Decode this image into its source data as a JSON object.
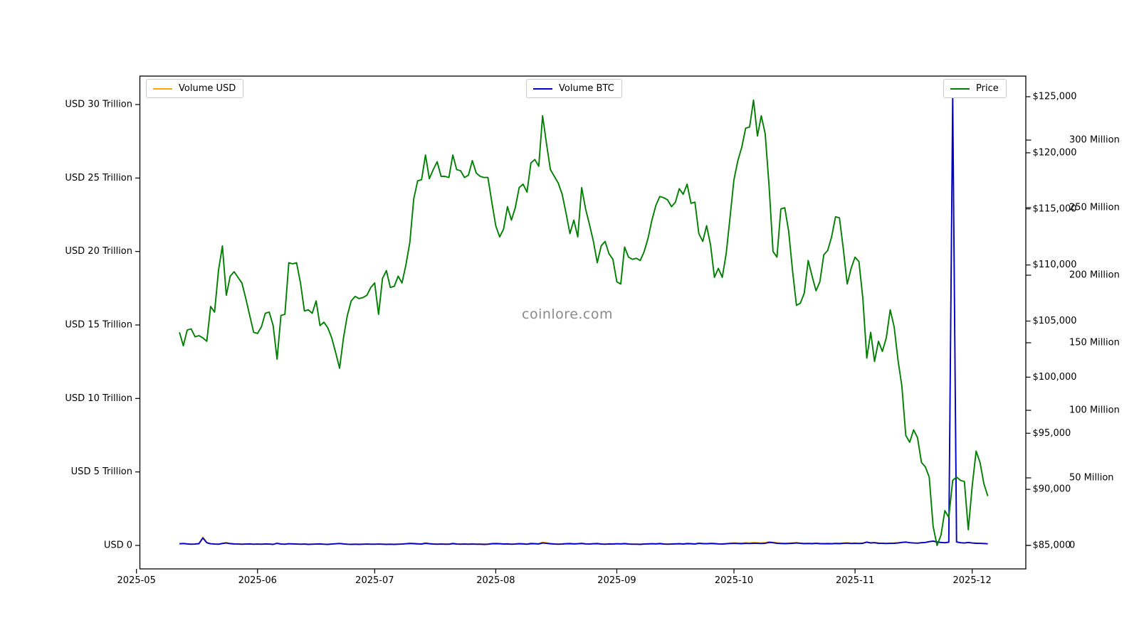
{
  "figure": {
    "watermark": "coinlore.com",
    "background": "#ffffff"
  },
  "legend": [
    {
      "label": "Volume USD",
      "color": "#FFA500"
    },
    {
      "label": "Volume BTC",
      "color": "#0000CD"
    },
    {
      "label": "Price",
      "color": "#008000"
    }
  ],
  "axes": {
    "x": {
      "labels": [
        "2025-05",
        "2025-06",
        "2025-07",
        "2025-08",
        "2025-09",
        "2025-10",
        "2025-11",
        "2025-12"
      ],
      "month_day_offsets": [
        0,
        31,
        61,
        92,
        123,
        153,
        184,
        214
      ]
    },
    "left_volume_usd": {
      "labels": [
        "USD 0",
        "USD 5 Trillion",
        "USD 10 Trillion",
        "USD 15 Trillion",
        "USD 20 Trillion",
        "USD 25 Trillion",
        "USD 30 Trillion"
      ],
      "values_trillions": [
        0,
        5,
        10,
        15,
        20,
        25,
        30
      ]
    },
    "right_price": {
      "labels": [
        "$85,000",
        "$90,000",
        "$95,000",
        "$100,000",
        "$105,000",
        "$110,000",
        "$115,000",
        "$120,000",
        "$125,000"
      ],
      "values_usd": [
        85000,
        90000,
        95000,
        100000,
        105000,
        110000,
        115000,
        120000,
        125000
      ]
    },
    "right_volume_btc": {
      "labels": [
        "0",
        "50 Million",
        "100 Million",
        "150 Million",
        "200 Million",
        "250 Million",
        "300 Million"
      ],
      "values_millions": [
        0,
        50,
        100,
        150,
        200,
        250,
        300
      ]
    }
  },
  "chart_data": {
    "type": "line",
    "x_start": "2025-05-12",
    "x_end": "2025-12-05",
    "frequency": "daily",
    "legend_position": "three boxes inside top of plot (left, center, right)",
    "grid": false,
    "series": [
      {
        "name": "Volume USD",
        "axis": "left_usd_trillions",
        "color": "#FFA500",
        "derivation": "volume_btc_millions * price_usd / 1e6; flat near 0 and hidden behind the Volume BTC line, spike ~30.3 trillion on 2025-11-26"
      },
      {
        "name": "Volume BTC",
        "axis": "right_volume_btc_millions",
        "color": "#0000CD",
        "values_millions": [
          1.2,
          1.4,
          1.1,
          0.9,
          1.0,
          1.3,
          5.5,
          2.0,
          1.2,
          1.0,
          0.9,
          1.4,
          1.8,
          1.3,
          1.1,
          1.0,
          0.9,
          1.0,
          1.1,
          0.9,
          1.0,
          0.9,
          1.1,
          1.0,
          0.8,
          1.5,
          1.0,
          0.9,
          1.2,
          1.1,
          1.0,
          0.9,
          1.0,
          0.8,
          0.9,
          1.0,
          1.1,
          0.9,
          0.8,
          1.0,
          1.2,
          1.4,
          1.1,
          0.9,
          0.8,
          0.9,
          0.8,
          0.9,
          1.0,
          0.9,
          0.9,
          1.0,
          0.9,
          0.8,
          0.9,
          0.8,
          0.9,
          1.0,
          1.2,
          1.4,
          1.3,
          1.1,
          1.0,
          1.5,
          1.2,
          1.0,
          0.9,
          1.0,
          0.9,
          0.9,
          1.3,
          1.0,
          0.9,
          1.0,
          0.9,
          1.0,
          0.9,
          0.9,
          0.8,
          0.9,
          1.2,
          1.3,
          1.2,
          1.0,
          1.1,
          0.9,
          1.0,
          1.2,
          1.1,
          0.9,
          1.3,
          1.2,
          1.1,
          1.8,
          1.5,
          1.2,
          1.0,
          0.9,
          1.0,
          1.2,
          1.3,
          1.1,
          1.2,
          1.4,
          1.1,
          1.0,
          1.2,
          1.3,
          1.0,
          0.9,
          1.1,
          1.0,
          1.2,
          1.1,
          1.3,
          1.0,
          0.9,
          0.9,
          0.8,
          1.0,
          1.1,
          1.2,
          1.1,
          1.3,
          1.0,
          0.9,
          1.0,
          1.1,
          1.2,
          1.0,
          1.3,
          1.2,
          1.0,
          1.5,
          1.3,
          1.2,
          1.4,
          1.3,
          1.1,
          1.0,
          1.2,
          1.4,
          1.5,
          1.4,
          1.3,
          1.5,
          1.4,
          1.6,
          1.5,
          1.4,
          1.6,
          2.2,
          2.0,
          1.6,
          1.4,
          1.3,
          1.4,
          1.6,
          1.8,
          1.5,
          1.3,
          1.4,
          1.3,
          1.5,
          1.3,
          1.2,
          1.3,
          1.2,
          1.4,
          1.3,
          1.5,
          1.7,
          1.4,
          1.5,
          1.4,
          1.6,
          2.4,
          1.8,
          2.0,
          1.6,
          1.5,
          1.4,
          1.5,
          1.6,
          1.8,
          2.2,
          2.5,
          2.0,
          1.8,
          1.7,
          2.0,
          2.2,
          2.8,
          3.2,
          2.6,
          2.2,
          2.0,
          2.4,
          332.0,
          2.6,
          2.0,
          1.8,
          2.2,
          1.8,
          1.6,
          1.5,
          1.4,
          1.2
        ]
      },
      {
        "name": "Price",
        "axis": "right_price_usd",
        "color": "#008000",
        "values_usd": [
          104000,
          102800,
          104200,
          104300,
          103600,
          103700,
          103500,
          103200,
          106300,
          105800,
          109500,
          111700,
          107300,
          109000,
          109400,
          108900,
          108400,
          107000,
          105500,
          104000,
          103900,
          104500,
          105700,
          105800,
          104600,
          101600,
          105500,
          105600,
          110200,
          110100,
          110200,
          108400,
          105900,
          106000,
          105700,
          106800,
          104600,
          104900,
          104400,
          103500,
          102200,
          100800,
          103500,
          105500,
          106800,
          107200,
          107000,
          107100,
          107300,
          108000,
          108400,
          105600,
          108800,
          109500,
          108000,
          108100,
          109000,
          108400,
          110000,
          112000,
          115900,
          117500,
          117600,
          119800,
          117700,
          118500,
          119200,
          117900,
          117900,
          117800,
          119800,
          118500,
          118400,
          117800,
          118000,
          119300,
          118200,
          117900,
          117800,
          117800,
          115600,
          113500,
          112500,
          113200,
          115200,
          114000,
          115100,
          116900,
          117200,
          116500,
          119100,
          119400,
          118800,
          123300,
          120800,
          118500,
          117900,
          117300,
          116300,
          114600,
          112800,
          114000,
          112500,
          116900,
          115000,
          113600,
          112100,
          110200,
          111700,
          112100,
          111000,
          110500,
          108500,
          108300,
          111600,
          110700,
          110500,
          110600,
          110400,
          111200,
          112400,
          114000,
          115300,
          116100,
          116000,
          115800,
          115200,
          115600,
          116800,
          116300,
          117200,
          115500,
          115600,
          112800,
          112100,
          113500,
          111800,
          108900,
          109700,
          108900,
          111000,
          114300,
          117600,
          119300,
          120500,
          122200,
          122300,
          124700,
          121500,
          123300,
          121700,
          117000,
          111200,
          110700,
          115000,
          115100,
          113000,
          109500,
          106400,
          106600,
          107500,
          110400,
          109000,
          107700,
          108500,
          110900,
          111300,
          112500,
          114300,
          114200,
          111400,
          108300,
          109700,
          110700,
          110300,
          107000,
          101700,
          104000,
          101400,
          103200,
          102300,
          103500,
          106000,
          104500,
          101500,
          99200,
          94800,
          94200,
          95300,
          94600,
          92400,
          92000,
          91100,
          86700,
          85000,
          85900,
          88100,
          87500,
          90800,
          91100,
          90800,
          90700,
          86400,
          90300,
          93400,
          92400,
          90500,
          89400
        ]
      }
    ],
    "ylim_left_trillions": [
      0,
      32
    ],
    "ylim_price_usd": [
      83000,
      126800
    ],
    "ylim_btc_millions": [
      0,
      347
    ],
    "notable_points": {
      "price_peak": {
        "date": "2025-10-06",
        "value_usd": 124700
      },
      "price_secondary_peak": {
        "date": "2025-08-13",
        "value_usd": 123300
      },
      "price_low": {
        "date": "2025-11-21",
        "value_usd": 85000
      },
      "volume_btc_spike": {
        "date": "2025-11-26",
        "value_millions": 332
      },
      "volume_btc_bump": {
        "date": "2025-05-18",
        "value_millions": 5.5
      }
    }
  }
}
